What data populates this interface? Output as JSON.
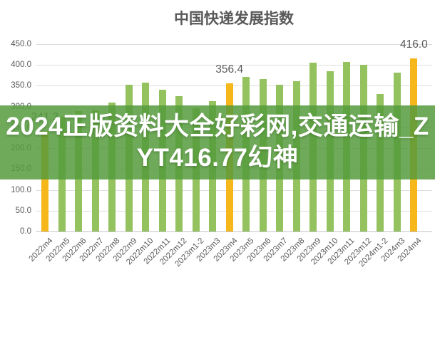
{
  "page": {
    "background": "#ffffff"
  },
  "chart_data": {
    "type": "bar",
    "title": "中国快递发展指数",
    "categories": [
      "2022m4",
      "2022m5",
      "2022m6",
      "2022m7",
      "2022m8",
      "2022m9",
      "2022m10",
      "2022m11",
      "2022m12",
      "2023m1-2",
      "2023m3",
      "2023m4",
      "2023m5",
      "2023m6",
      "2023m7",
      "2023m8",
      "2023m9",
      "2023m10",
      "2023m11",
      "2023m12",
      "2024m1-2",
      "2024m3",
      "2024m4"
    ],
    "values": [
      241.3,
      276,
      289,
      291,
      310,
      353,
      358,
      340,
      326,
      296,
      313,
      356.4,
      372,
      366,
      352,
      361,
      406,
      385,
      408,
      401,
      330,
      381,
      416.0
    ],
    "highlight_indices": [
      0,
      11,
      22
    ],
    "data_labels": [
      {
        "index": 0,
        "text": "241.3"
      },
      {
        "index": 11,
        "text": "356.4"
      },
      {
        "index": 22,
        "text": "416.0"
      }
    ],
    "ylim": [
      0,
      450
    ],
    "ytick_step": 50,
    "yticks": [
      "450.0",
      "400.0",
      "350.0",
      "300.0",
      "250.0",
      "200.0",
      "150.0",
      "100.0",
      "50.0",
      "0.0"
    ],
    "grid": true,
    "legend": false,
    "xlabel": "",
    "ylabel": "",
    "colors": {
      "bar": "#93C25F",
      "highlight": "#F5B71A",
      "grid": "#DEDEDE",
      "axis_line": "#C4C4C4",
      "text": "#595959"
    }
  },
  "overlay": {
    "line1": "2024正版资料大全好彩网,交通运输_Z",
    "line2": "YT416.77幻神",
    "text_color": "#ffffff"
  }
}
